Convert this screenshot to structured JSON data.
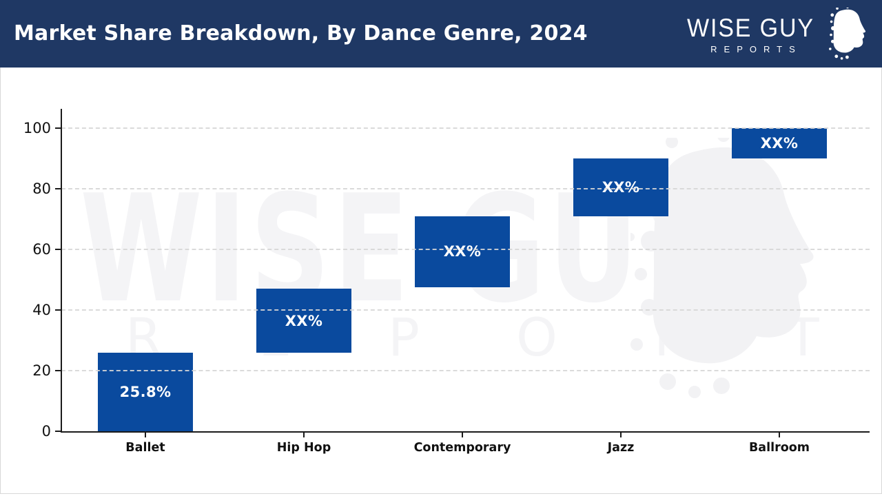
{
  "header": {
    "title": "Market Share Breakdown, By Dance Genre, 2024",
    "logo": {
      "primary": "WISE GUY",
      "secondary": "REPORTS"
    }
  },
  "watermark": {
    "primary": "WISE GUY",
    "secondary": "R E P O R T S"
  },
  "chart_data": {
    "type": "bar",
    "subtype": "waterfall",
    "title": "Market Share Breakdown, By Dance Genre, 2024",
    "categories": [
      "Ballet",
      "Hip Hop",
      "Contemporary",
      "Jazz",
      "Ballroom"
    ],
    "segments": [
      {
        "category": "Ballet",
        "start": 0,
        "end": 25.8,
        "label": "25.8%"
      },
      {
        "category": "Hip Hop",
        "start": 25.8,
        "end": 47,
        "label": "XX%"
      },
      {
        "category": "Contemporary",
        "start": 47.5,
        "end": 71,
        "label": "XX%"
      },
      {
        "category": "Jazz",
        "start": 71,
        "end": 90,
        "label": "XX%"
      },
      {
        "category": "Ballroom",
        "start": 90,
        "end": 100,
        "label": "XX%"
      }
    ],
    "y_ticks": [
      0,
      20,
      40,
      60,
      80,
      100
    ],
    "ylim": [
      0,
      107
    ],
    "xlabel": "",
    "ylabel": "",
    "grid": "horizontal-dashed",
    "legend": "none",
    "bar_color": "#0a4a9e",
    "bar_label_color": "#ffffff"
  },
  "colors": {
    "header_bg": "#1f3864",
    "background": "#ffffff",
    "watermark": "#f3f3f5",
    "grid": "#dfdfdf",
    "axis": "#1a1a1a",
    "text": "#111111",
    "border": "#d8d8d8"
  }
}
